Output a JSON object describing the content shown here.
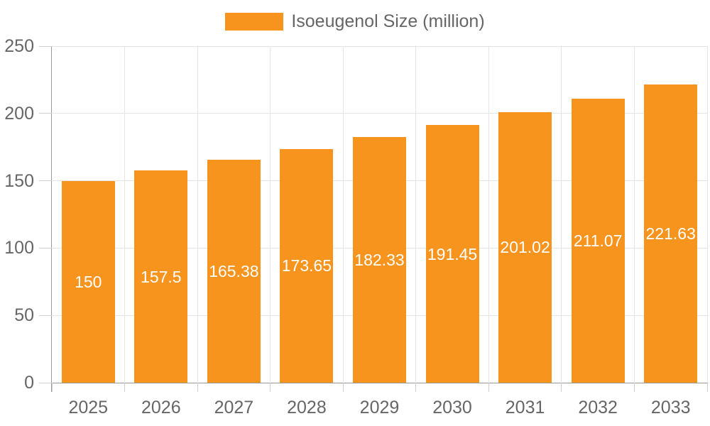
{
  "legend": {
    "label": "Isoeugenol Size (million)"
  },
  "chart_data": {
    "type": "bar",
    "title": "",
    "xlabel": "",
    "ylabel": "",
    "categories": [
      "2025",
      "2026",
      "2027",
      "2028",
      "2029",
      "2030",
      "2031",
      "2032",
      "2033"
    ],
    "series": [
      {
        "name": "Isoeugenol Size (million)",
        "values": [
          150,
          157.5,
          165.38,
          173.65,
          182.33,
          191.45,
          201.02,
          211.07,
          221.63
        ]
      }
    ],
    "value_labels": [
      "150",
      "157.5",
      "165.38",
      "173.65",
      "182.33",
      "191.45",
      "201.02",
      "211.07",
      "221.63"
    ],
    "ylim": [
      0,
      250
    ],
    "yticks": [
      "0",
      "50",
      "100",
      "150",
      "200",
      "250"
    ],
    "grid": true,
    "legend_position": "top"
  },
  "colors": {
    "bar": "#F7941E",
    "grid": "#e5e5e5",
    "tick": "#cfcfcf",
    "axis": "#999999",
    "label_text": "#666666",
    "value_label_text": "#ffffff",
    "background": "#ffffff"
  }
}
